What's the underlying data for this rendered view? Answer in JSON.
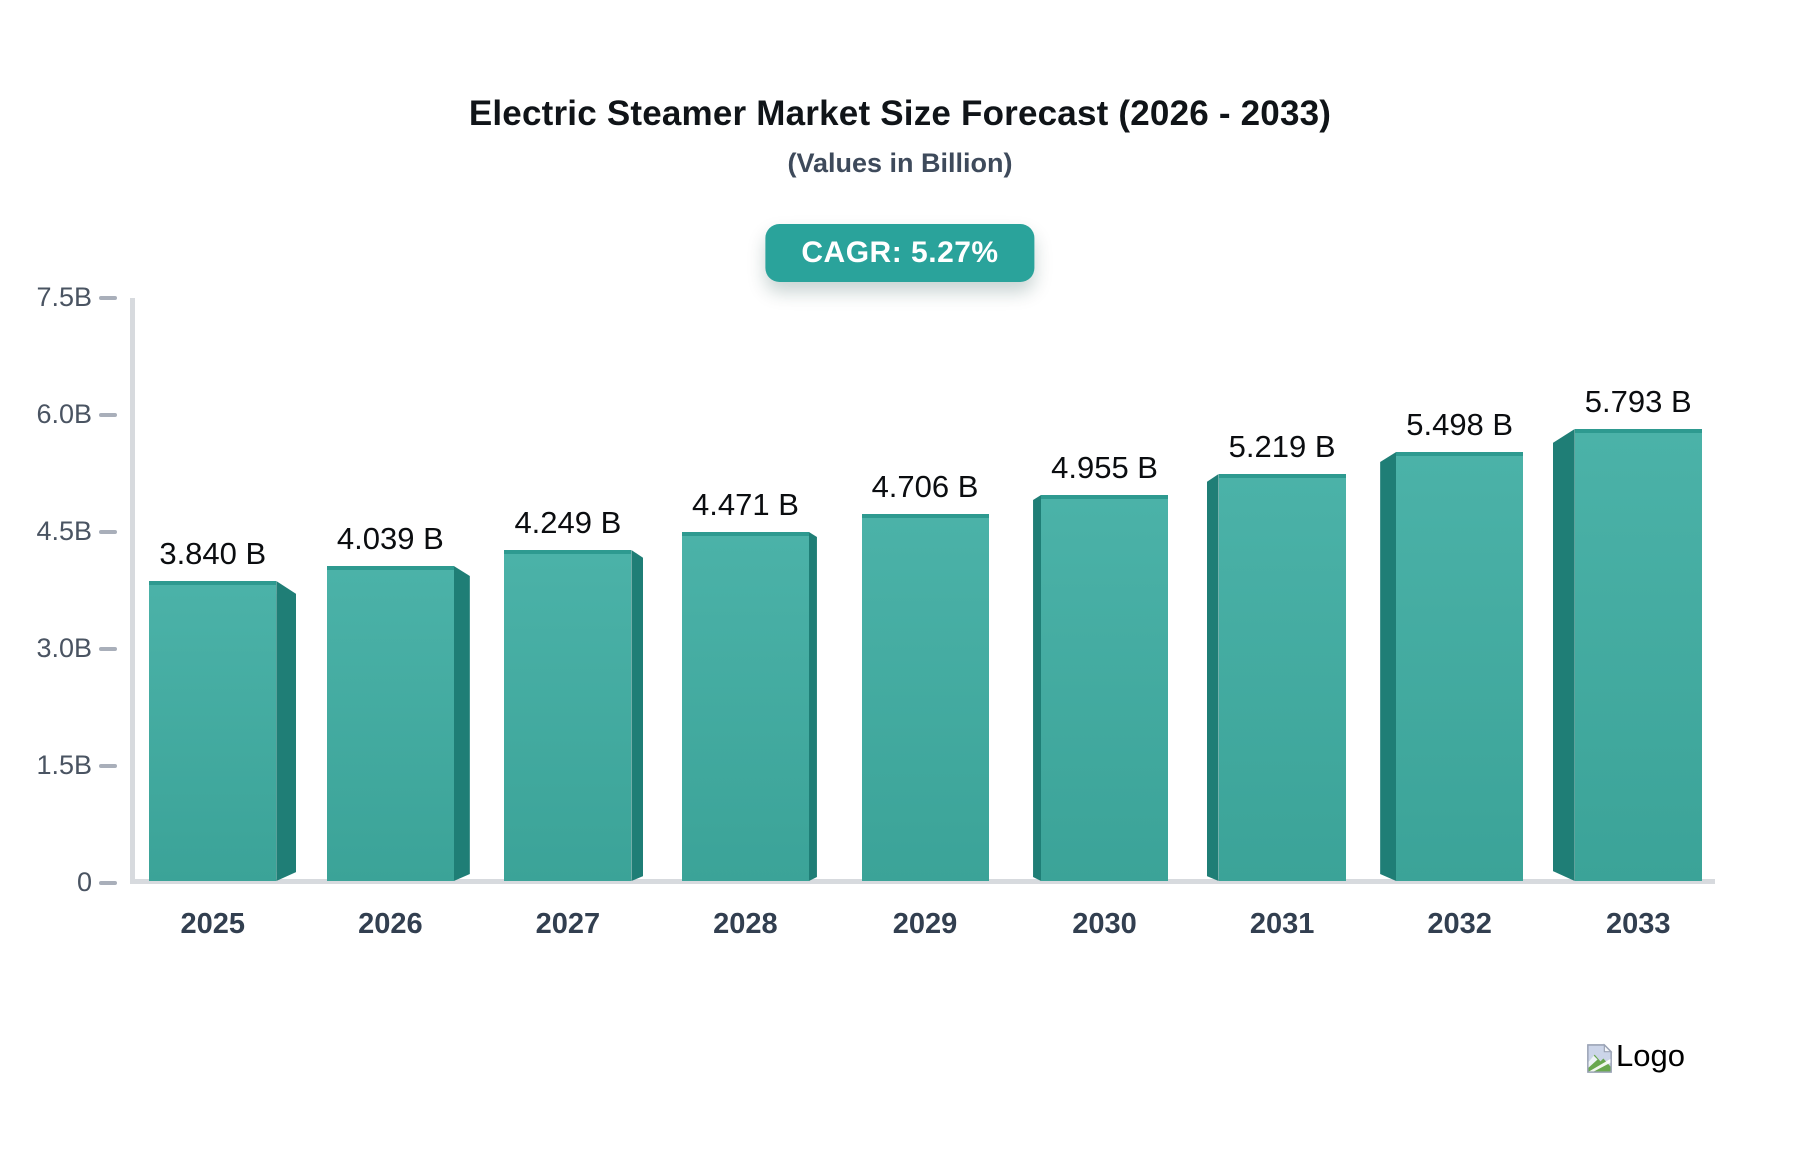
{
  "chart_data": {
    "type": "bar",
    "title": "Electric Steamer Market Size Forecast (2026 - 2033)",
    "subtitle": "(Values in Billion)",
    "badge_label": "CAGR: 5.27%",
    "categories": [
      "2025",
      "2026",
      "2027",
      "2028",
      "2029",
      "2030",
      "2031",
      "2032",
      "2033"
    ],
    "values": [
      3.84,
      4.039,
      4.249,
      4.471,
      4.706,
      4.955,
      5.219,
      5.498,
      5.793
    ],
    "value_labels": [
      "3.840 B",
      "4.039 B",
      "4.249 B",
      "4.471 B",
      "4.706 B",
      "4.955 B",
      "5.219 B",
      "5.498 B",
      "5.793 B"
    ],
    "xlabel": "",
    "ylabel": "",
    "ylim": [
      0,
      7.5
    ],
    "yticks": [
      {
        "label": "7.5B",
        "value": 7.5
      },
      {
        "label": "6.0B",
        "value": 6.0
      },
      {
        "label": "4.5B",
        "value": 4.5
      },
      {
        "label": "3.0B",
        "value": 3.0
      },
      {
        "label": "1.5B",
        "value": 1.5
      },
      {
        "label": "0",
        "value": 0.0
      }
    ],
    "grid": "off",
    "legend": "none",
    "colors": {
      "bar_face_top": "#4bb2a8",
      "bar_face_bottom": "#3ba398",
      "bar_top_edge": "#2e9a90",
      "bar_side_face": "#1f7e76",
      "badge_bg": "#2aa39b",
      "axis_line": "#d7dade",
      "tick_dash": "#a9afba"
    }
  },
  "logo": {
    "alt_text": "Logo"
  }
}
